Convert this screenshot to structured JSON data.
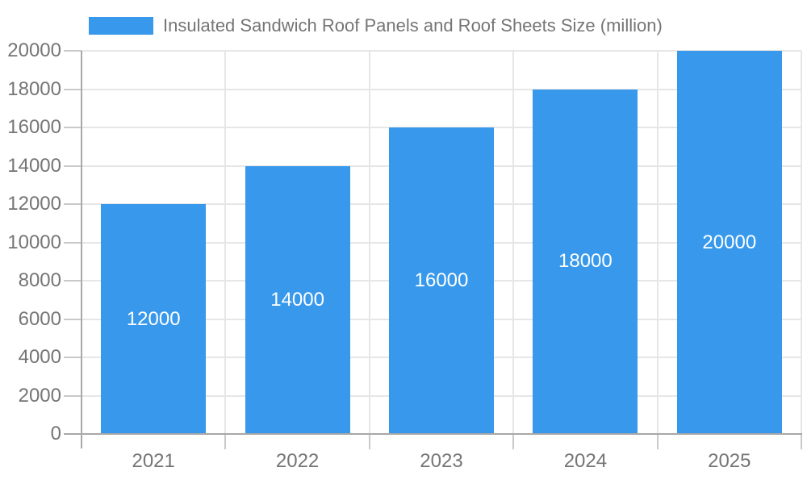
{
  "chart_data": {
    "type": "bar",
    "title": "Insulated Sandwich Roof Panels and Roof Sheets Size (million)",
    "legend": {
      "position": "top",
      "label": "Insulated Sandwich Roof Panels and Roof Sheets Size (million)"
    },
    "categories": [
      "2021",
      "2022",
      "2023",
      "2024",
      "2025"
    ],
    "values": [
      12000,
      14000,
      16000,
      18000,
      20000
    ],
    "xlabel": "",
    "ylabel": "",
    "ylim": [
      0,
      20000
    ],
    "ytick_step": 2000,
    "yticks": [
      0,
      2000,
      4000,
      6000,
      8000,
      10000,
      12000,
      14000,
      16000,
      18000,
      20000
    ],
    "grid": true,
    "data_labels_inside_bars": true,
    "colors": {
      "bar": "#3899ec",
      "bar_label_text": "#ffffff",
      "axis_text": "#757575",
      "axis_line": "#a8a8a8",
      "tick_line": "#c9c9c9",
      "grid_line": "#e6e6e6",
      "background": "#ffffff"
    }
  }
}
